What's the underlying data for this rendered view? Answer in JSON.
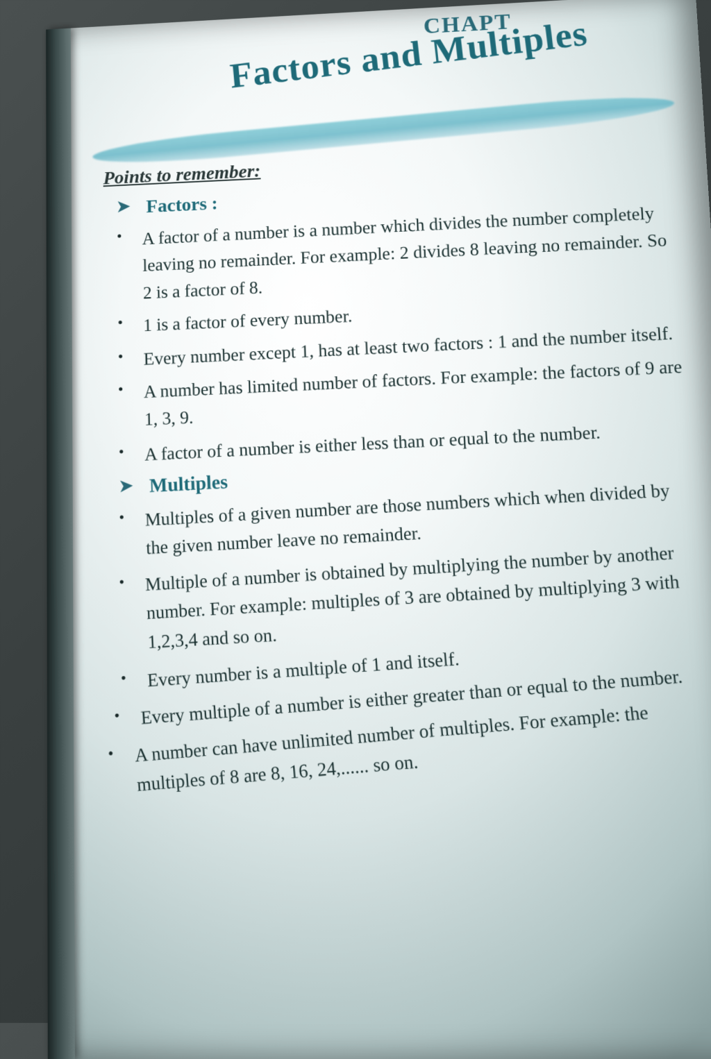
{
  "colors": {
    "heading": "#1e6a78",
    "divider_top": "#7ec8d4",
    "divider_bottom": "#b8dce4",
    "body_text": "#1a3030",
    "page_highlight": "#ffffff",
    "page_shadow": "#8aa0a0",
    "spine": "#1a2424"
  },
  "typography": {
    "title_fontsize_pt": 40,
    "heading_fontsize_pt": 21,
    "body_fontsize_pt": 19,
    "font_family": "serif"
  },
  "chapter_label": "CHAPT",
  "title": "Factors and Multiples",
  "section_label": "Points to remember:",
  "factors": {
    "heading": "Factors :",
    "bullets": [
      "A factor of a number is a number which divides the number completely leaving no remainder. For example: 2 divides 8 leaving no remainder. So 2 is a factor of 8.",
      "1 is a factor of every number.",
      "Every number except 1, has at least two factors : 1 and the number itself.",
      "A number has limited number of factors. For example: the factors of 9 are 1, 3, 9.",
      "A factor of a number is either less than or equal to the number."
    ]
  },
  "multiples": {
    "heading": "Multiples",
    "bullets": [
      "Multiples of a given number are those numbers which when divided by the given number leave no remainder.",
      "Multiple of a number is obtained by multiplying the number by another number. For example: multiples of 3 are obtained by multiplying 3 with 1,2,3,4 and so on.",
      "Every number is a multiple of 1 and itself.",
      "Every multiple of a number is either greater than or equal to the number.",
      "A number can have unlimited number of multiples. For example: the multiples of 8 are 8, 16, 24,...... so on."
    ]
  }
}
